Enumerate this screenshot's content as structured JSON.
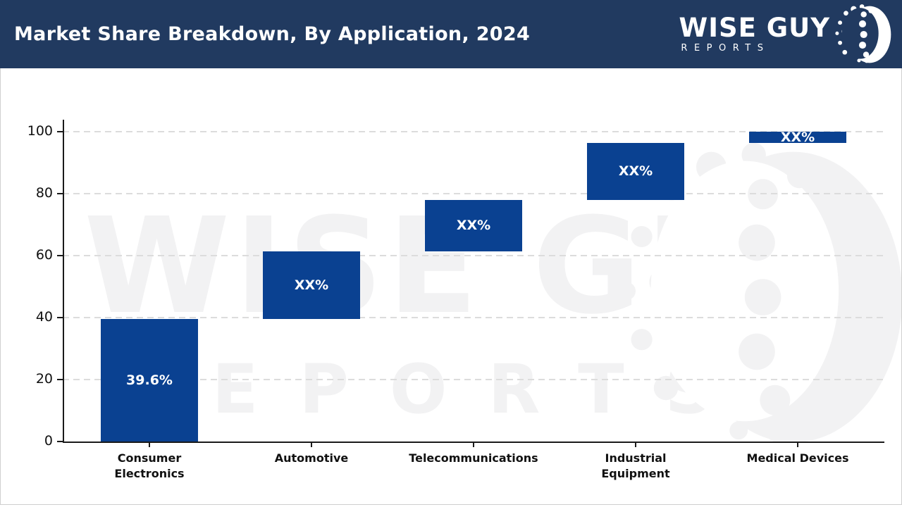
{
  "header": {
    "title": "Market Share Breakdown, By Application, 2024",
    "logo": {
      "line1": "WISE GUY",
      "line2": "REPORTS"
    }
  },
  "watermark": {
    "line1": "WISE GUY",
    "line2": "REPORTS"
  },
  "colors": {
    "header_bg": "#213a60",
    "bar": "#0a4191",
    "axis": "#1a1a1a",
    "grid": "#dcdcdc",
    "watermark": "#f2f2f3"
  },
  "chart_data": {
    "type": "bar",
    "subtype": "waterfall-floating-bars",
    "title": "Market Share Breakdown, By Application, 2024",
    "categories": [
      "Consumer Electronics",
      "Automotive",
      "Telecommunications",
      "Industrial Equipment",
      "Medical Devices"
    ],
    "tick_labels": [
      "Consumer\nElectronics",
      "Automotive",
      "Telecommunications",
      "Industrial\nEquipment",
      "Medical Devices"
    ],
    "segments": [
      {
        "category": "Consumer Electronics",
        "start": 0,
        "end": 39.6,
        "label": "39.6%"
      },
      {
        "category": "Automotive",
        "start": 39.6,
        "end": 61.4,
        "label": "XX%"
      },
      {
        "category": "Telecommunications",
        "start": 61.4,
        "end": 78.0,
        "label": "XX%"
      },
      {
        "category": "Industrial Equipment",
        "start": 78.0,
        "end": 96.4,
        "label": "XX%"
      },
      {
        "category": "Medical Devices",
        "start": 96.4,
        "end": 100.0,
        "label": "XX%"
      }
    ],
    "y_ticks": [
      0,
      20,
      40,
      60,
      80,
      100
    ],
    "ylim": [
      0,
      105
    ],
    "xlabel": "",
    "ylabel": "",
    "grid": "horizontal-dashed",
    "legend": "none",
    "bar_color": "#0a4191",
    "bar_label_color": "#ffffff"
  }
}
